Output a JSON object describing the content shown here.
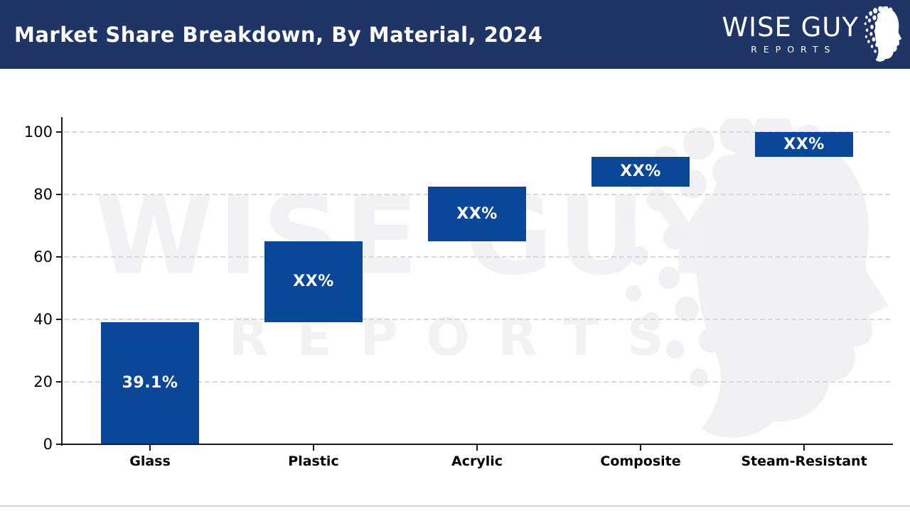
{
  "header": {
    "title": "Market Share Breakdown, By Material, 2024",
    "logo": {
      "name": "WISE GUY",
      "tagline": "REPORTS"
    },
    "background_color": "#1f3566"
  },
  "watermark": {
    "name": "WISE GUY",
    "tagline": "REPORTS"
  },
  "chart_data": {
    "type": "bar",
    "subtype": "waterfall",
    "title": "Market Share Breakdown, By Material, 2024",
    "categories": [
      "Glass",
      "Plastic",
      "Acrylic",
      "Composite",
      "Steam-Resistant"
    ],
    "series": [
      {
        "name": "Market share (%)",
        "segments": [
          {
            "category": "Glass",
            "start": 0,
            "end": 39.1,
            "label": "39.1%"
          },
          {
            "category": "Plastic",
            "start": 39.1,
            "end": 65.0,
            "label": "XX%"
          },
          {
            "category": "Acrylic",
            "start": 65.0,
            "end": 82.6,
            "label": "XX%"
          },
          {
            "category": "Composite",
            "start": 82.6,
            "end": 92.1,
            "label": "XX%"
          },
          {
            "category": "Steam-Resistant",
            "start": 92.1,
            "end": 100.0,
            "label": "XX%"
          }
        ]
      }
    ],
    "xlabel": "",
    "ylabel": "",
    "ylim": [
      0,
      105
    ],
    "yticks": [
      0,
      20,
      40,
      60,
      80,
      100
    ],
    "grid": {
      "axis": "y",
      "style": "dashed",
      "color": "#d9d9d9"
    },
    "legend": "none",
    "bar_color": "#0b4799",
    "bar_label_color": "#ffffff",
    "axis_color": "#1a1a1a"
  }
}
